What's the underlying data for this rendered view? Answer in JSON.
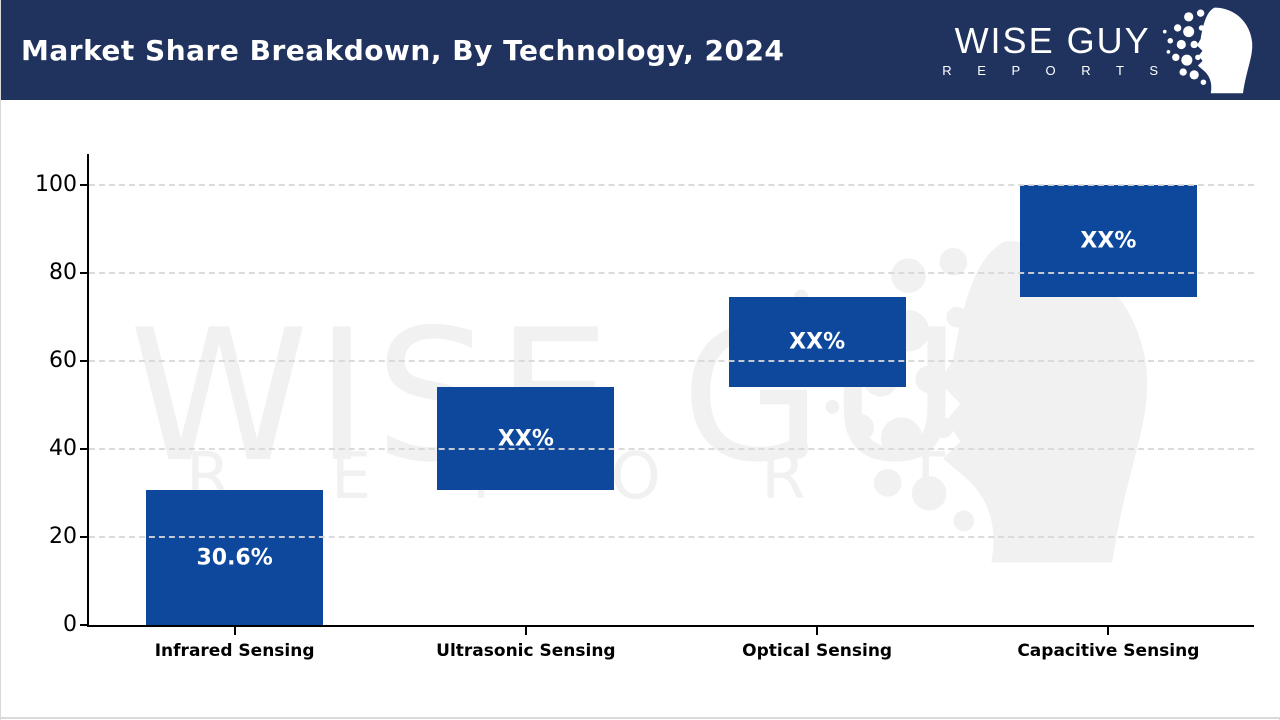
{
  "header": {
    "title": "Market Share Breakdown, By Technology, 2024",
    "bg_color": "#20335f",
    "logo": {
      "line1": "WISE GUY",
      "line2": "R E P O R T S"
    }
  },
  "chart_data": {
    "type": "bar",
    "subtype": "waterfall",
    "title": "Market Share Breakdown, By Technology, 2024",
    "xlabel": "",
    "ylabel": "",
    "categories": [
      "Infrared Sensing",
      "Ultrasonic Sensing",
      "Optical Sensing",
      "Capacitive Sensing"
    ],
    "segments": [
      {
        "category": "Infrared Sensing",
        "start": 0,
        "end": 30.6,
        "label": "30.6%"
      },
      {
        "category": "Ultrasonic Sensing",
        "start": 30.6,
        "end": 54,
        "label": "XX%"
      },
      {
        "category": "Optical Sensing",
        "start": 54,
        "end": 74.5,
        "label": "XX%"
      },
      {
        "category": "Capacitive Sensing",
        "start": 74.5,
        "end": 100,
        "label": "XX%"
      }
    ],
    "yticks": [
      0,
      20,
      40,
      60,
      80,
      100
    ],
    "ytick_labels": [
      "0",
      "20",
      "40",
      "60",
      "80",
      "100"
    ],
    "ylim": [
      0,
      107
    ],
    "bar_color": "#0d489c",
    "grid": "horizontal-dashed",
    "legend": "none",
    "watermark": {
      "line1": "WISE GU",
      "line2": "R E P O R T S"
    }
  }
}
